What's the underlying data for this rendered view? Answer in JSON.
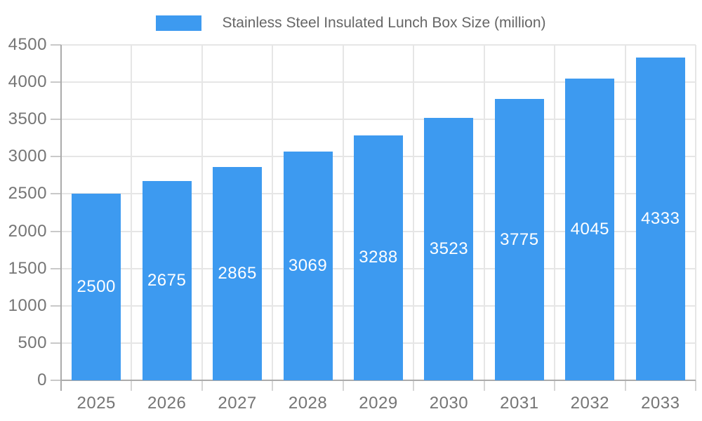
{
  "legend": {
    "label": "Stainless Steel Insulated Lunch Box Size (million)"
  },
  "chart_data": {
    "type": "bar",
    "title": "Stainless Steel Insulated Lunch Box Size (million)",
    "series_name": "Stainless Steel Insulated Lunch Box Size (million)",
    "categories": [
      "2025",
      "2026",
      "2027",
      "2028",
      "2029",
      "2030",
      "2031",
      "2032",
      "2033"
    ],
    "values": [
      2500,
      2675,
      2865,
      3069,
      3288,
      3523,
      3775,
      4045,
      4333
    ],
    "xlabel": "",
    "ylabel": "",
    "ylim": [
      0,
      4500
    ],
    "ytick_step": 500,
    "yticks": [
      0,
      500,
      1000,
      1500,
      2000,
      2500,
      3000,
      3500,
      4000,
      4500
    ],
    "grid": "on",
    "legend_position": "top-center",
    "value_labels": "inside-center-white",
    "bar_color": "#3d9af0",
    "value_label_color": "#ffffff",
    "axis_label_color": "#757575",
    "grid_color": "#e6e6e6",
    "axis_line_color": "#ababab",
    "background_color": "#ffffff"
  }
}
